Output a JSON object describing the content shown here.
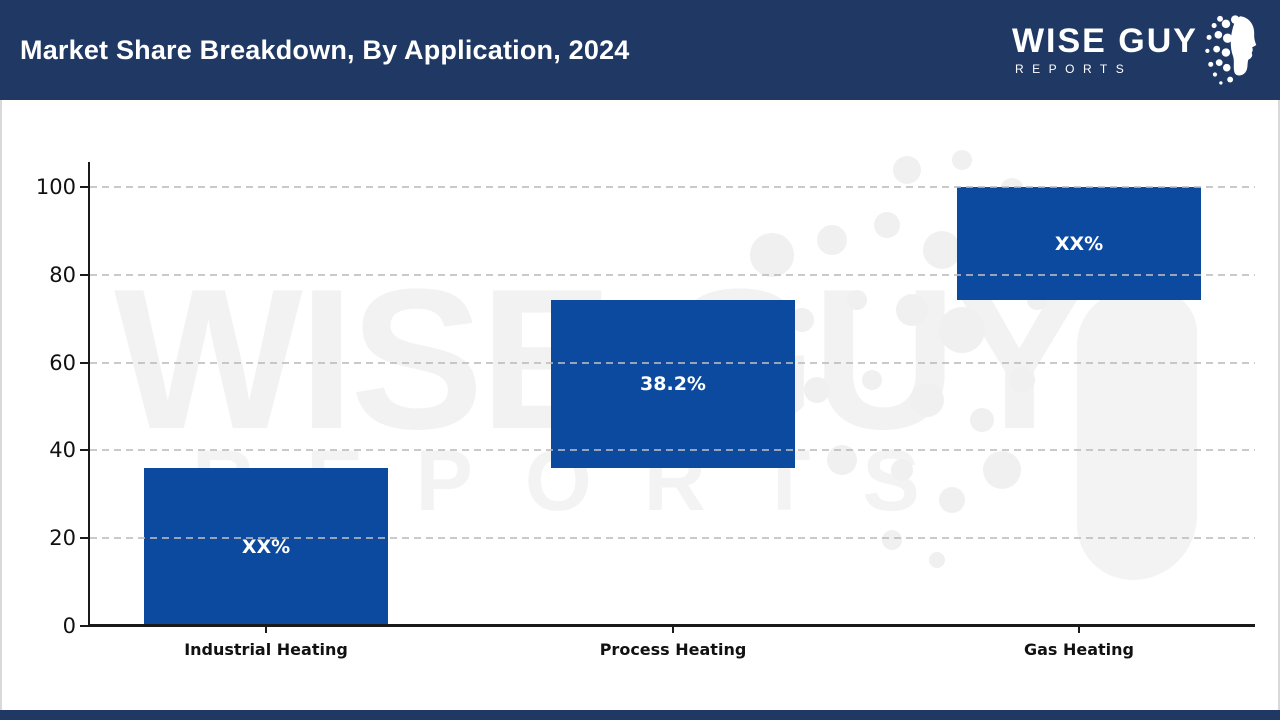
{
  "header": {
    "title": "Market Share Breakdown, By Application, 2024",
    "brand_name": "WISE GUY",
    "brand_sub": "REPORTS"
  },
  "watermark": {
    "line1": "WISE GUY",
    "line2": "REPORTS"
  },
  "chart_data": {
    "type": "bar",
    "subtype": "floating-waterfall",
    "title": "Market Share Breakdown, By Application, 2024",
    "xlabel": "",
    "ylabel": "",
    "ylim": [
      0,
      100
    ],
    "y_ticks": [
      0,
      20,
      40,
      60,
      80,
      100
    ],
    "grid": "horizontal-dashed",
    "legend": "none",
    "categories": [
      "Industrial Heating",
      "Process Heating",
      "Gas Heating"
    ],
    "bars": [
      {
        "category": "Industrial Heating",
        "start": 0,
        "end": 36,
        "size": 36,
        "label": "XX%"
      },
      {
        "category": "Process Heating",
        "start": 36,
        "end": 74.2,
        "size": 38.2,
        "label": "38.2%"
      },
      {
        "category": "Gas Heating",
        "start": 74.2,
        "end": 100,
        "size": 25.8,
        "label": "XX%"
      }
    ],
    "bar_color": "#0b4a9e",
    "bar_label_color": "#ffffff"
  },
  "colors": {
    "header_bg": "#203864",
    "footer_bg": "#203864",
    "accent_blue": "#0b4a9e"
  }
}
